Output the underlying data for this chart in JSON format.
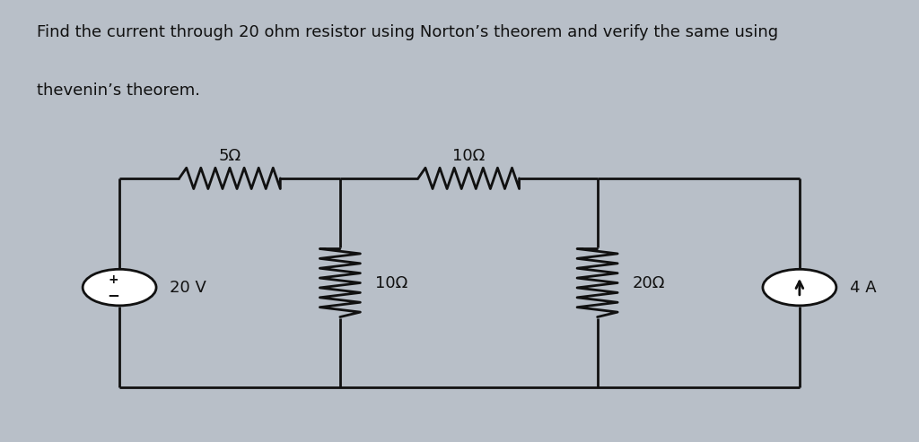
{
  "title_line1": "Find the current through 20 ohm resistor using Norton’s theorem and verify the same using",
  "title_line2": "thevenin’s theorem.",
  "bg_outer": "#b8bfc8",
  "bg_title": "#c0c8d0",
  "bg_circuit": "#dce4ec",
  "text_color": "#111111",
  "title_fontsize": 13.0,
  "resistor_labels": [
    "5Ω",
    "10Ω",
    "10Ω",
    "20Ω"
  ],
  "voltage_source_label": "20 V",
  "current_source_label": "4 A",
  "line_color": "#111111",
  "line_width": 2.0,
  "label_fontsize": 13
}
